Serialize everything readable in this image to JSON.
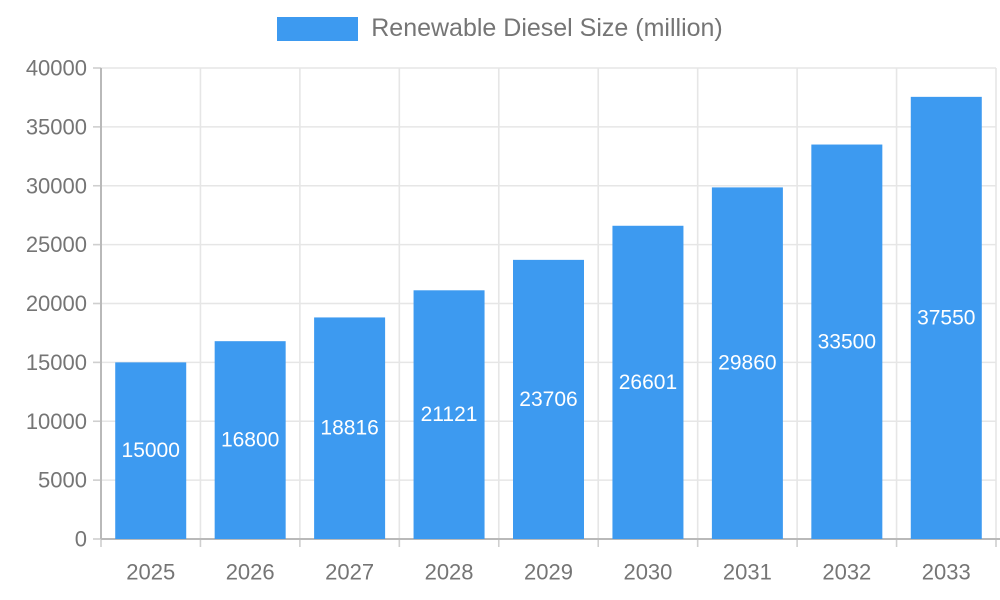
{
  "legend": {
    "label": "Renewable Diesel Size (million)"
  },
  "colors": {
    "bar": "#3d9af0",
    "grid": "#e6e6e6",
    "axis": "#b9b9b9",
    "tick": "#cfcfcf",
    "text": "#757575",
    "value_label": "#ffffff"
  },
  "chart_data": {
    "type": "bar",
    "title": "Renewable Diesel Size (million)",
    "categories": [
      "2025",
      "2026",
      "2027",
      "2028",
      "2029",
      "2030",
      "2031",
      "2032",
      "2033"
    ],
    "values": [
      15000,
      16800,
      18816,
      21121,
      23706,
      26601,
      29860,
      33500,
      37550
    ],
    "xlabel": "",
    "ylabel": "",
    "ylim": [
      0,
      40000
    ],
    "ytick_step": 5000,
    "ytick_labels": [
      "0",
      "5000",
      "10000",
      "15000",
      "20000",
      "25000",
      "30000",
      "35000",
      "40000"
    ],
    "grid": true,
    "legend_position": "top",
    "value_labels_inside_bars": true
  }
}
